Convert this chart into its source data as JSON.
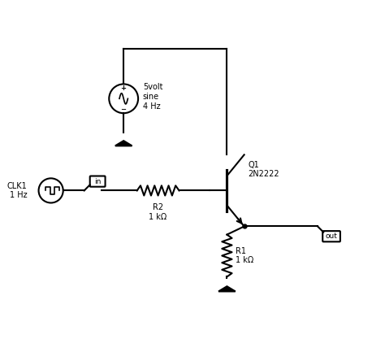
{
  "background_color": "#ffffff",
  "line_color": "#000000",
  "line_width": 1.5,
  "fig_width": 4.74,
  "fig_height": 4.17,
  "dpi": 100,
  "labels": {
    "clk1": "CLK1\n1 Hz",
    "in_label": "in",
    "r2_label": "R2\n1 kΩ",
    "q1_label": "Q1\n2N2222",
    "r1_label": "R1\n1 kΩ",
    "out_label": "out",
    "vsource_label": "5volt\nsine\n4 Hz"
  },
  "font_size": 7
}
